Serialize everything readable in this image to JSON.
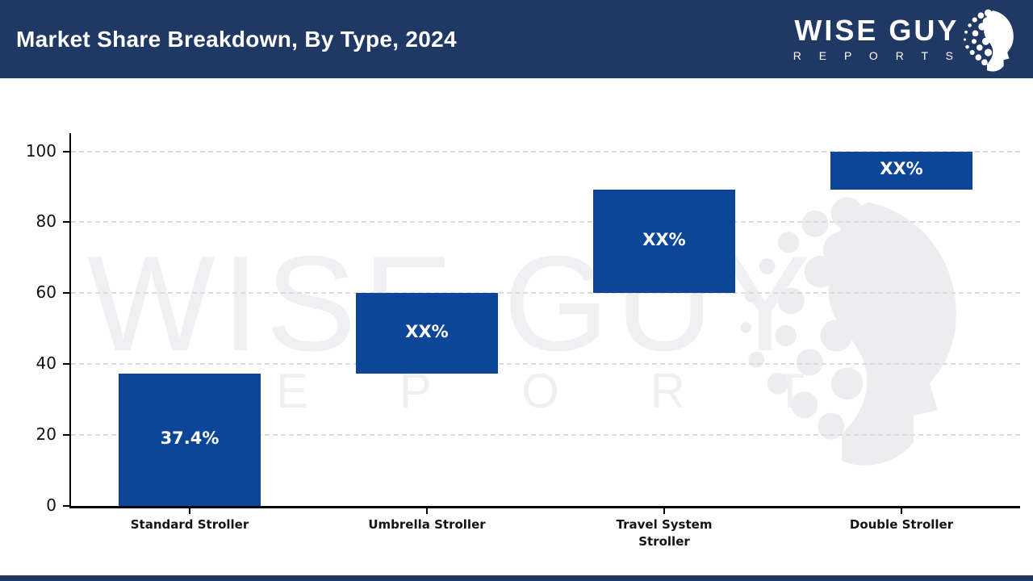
{
  "header": {
    "title": "Market Share Breakdown, By Type, 2024",
    "logo": {
      "wordmark": "WISE GUY",
      "subtext": "R E P O R T S"
    }
  },
  "watermark": {
    "line1": "WISE GUY",
    "line2": "R E P O R T S"
  },
  "chart_data": {
    "type": "bar",
    "subtype": "stacked-percentage-waterfall",
    "title": "Market Share Breakdown, By Type, 2024",
    "categories": [
      "Standard Stroller",
      "Umbrella Stroller",
      "Travel System Stroller",
      "Double Stroller"
    ],
    "segments": [
      {
        "category": "Standard Stroller",
        "start": 0,
        "end": 37.4,
        "value": 37.4,
        "label": "37.4%"
      },
      {
        "category": "Umbrella Stroller",
        "start": 37.4,
        "end": 60,
        "value": 22.6,
        "label": "XX%"
      },
      {
        "category": "Travel System Stroller",
        "start": 60,
        "end": 89.3,
        "value": 29.3,
        "label": "XX%"
      },
      {
        "category": "Double Stroller",
        "start": 89.3,
        "end": 100,
        "value": 10.7,
        "label": "XX%"
      }
    ],
    "xlabel": "",
    "ylabel": "",
    "ylim": [
      0,
      100
    ],
    "yticks": [
      0,
      20,
      40,
      60,
      80,
      100
    ],
    "grid": "horizontal-dashed",
    "legend": "none"
  },
  "colors": {
    "navy": "#203864",
    "bar": "#0d4699",
    "grid": "#dcdcdc",
    "watermark": "#f0f0f3",
    "bar_label": "#ffffff",
    "axis": "#000000"
  }
}
